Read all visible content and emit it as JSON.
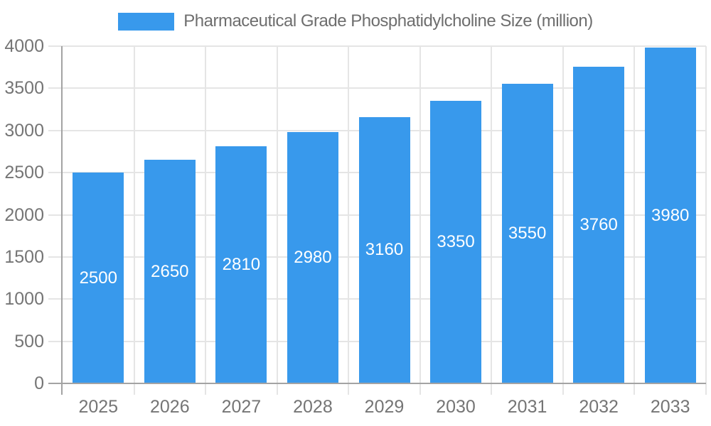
{
  "chart_data": {
    "type": "bar",
    "title": "Pharmaceutical Grade Phosphatidylcholine Size (million)",
    "categories": [
      "2025",
      "2026",
      "2027",
      "2028",
      "2029",
      "2030",
      "2031",
      "2032",
      "2033"
    ],
    "values": [
      2500,
      2650,
      2810,
      2980,
      3160,
      3350,
      3550,
      3760,
      3980
    ],
    "xlabel": "",
    "ylabel": "",
    "ylim": [
      0,
      4000
    ],
    "y_ticks": [
      0,
      500,
      1000,
      1500,
      2000,
      2500,
      3000,
      3500,
      4000
    ],
    "grid": true,
    "legend_position": "top",
    "value_label_position": "inside-center"
  },
  "style": {
    "bar_color": "#3899EC",
    "value_label_color": "#FFFFFF",
    "grid_color": "#E5E5E5",
    "axis_line_color": "#A3A3A3",
    "tick_label_color": "#757575",
    "legend_text_color": "#6E6E6E",
    "background_color": "#FFFFFF"
  }
}
